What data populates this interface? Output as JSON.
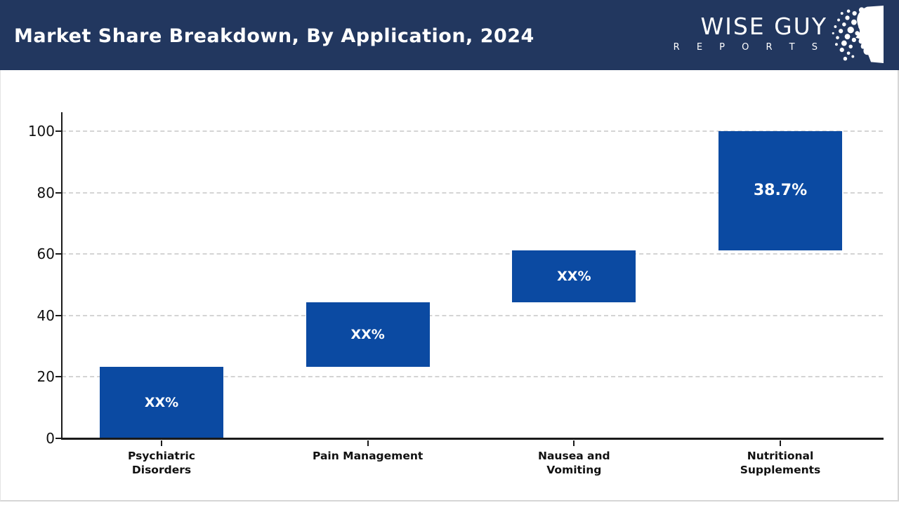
{
  "header": {
    "title": "Market Share Breakdown, By Application, 2024",
    "logo": {
      "name": "WISE GUY",
      "sub": "R E P O R T S"
    }
  },
  "watermark": {
    "line1": "WISE GUY",
    "line2": "REPORTS"
  },
  "chart_data": {
    "type": "bar",
    "subtype": "floating-waterfall",
    "title": "Market Share Breakdown, By Application, 2024",
    "categories": [
      "Psychiatric Disorders",
      "Pain Management",
      "Nausea and Vomiting",
      "Nutritional Supplements"
    ],
    "category_display_lines": [
      [
        "Psychiatric",
        "Disorders"
      ],
      [
        "Pain Management"
      ],
      [
        "Nausea and",
        "Vomiting"
      ],
      [
        "Nutritional",
        "Supplements"
      ]
    ],
    "series": [
      {
        "name": "Market share (%)",
        "segments": [
          {
            "category": "Psychiatric Disorders",
            "start": 0,
            "end": 23.3,
            "label": "XX%"
          },
          {
            "category": "Pain Management",
            "start": 23.3,
            "end": 44.3,
            "label": "XX%"
          },
          {
            "category": "Nausea and Vomiting",
            "start": 44.3,
            "end": 61.3,
            "label": "XX%"
          },
          {
            "category": "Nutritional Supplements",
            "start": 61.3,
            "end": 100,
            "label": "38.7%"
          }
        ],
        "values": [
          23.3,
          21.0,
          17.0,
          38.7
        ]
      }
    ],
    "ylim": [
      0,
      100
    ],
    "yticks": [
      0,
      20,
      40,
      60,
      80,
      100
    ],
    "xlabel": "",
    "ylabel": "",
    "grid": "horizontal-dashed",
    "legend": "none",
    "colors": {
      "bar": "#0b4aa2",
      "header_bg": "#22375f",
      "header_text": "#ffffff",
      "bar_label_text": "#ffffff",
      "grid": "#d4d4d4",
      "axis": "#1a1a1a",
      "tick_text": "#111111",
      "watermark": "#f2f2f2"
    }
  }
}
